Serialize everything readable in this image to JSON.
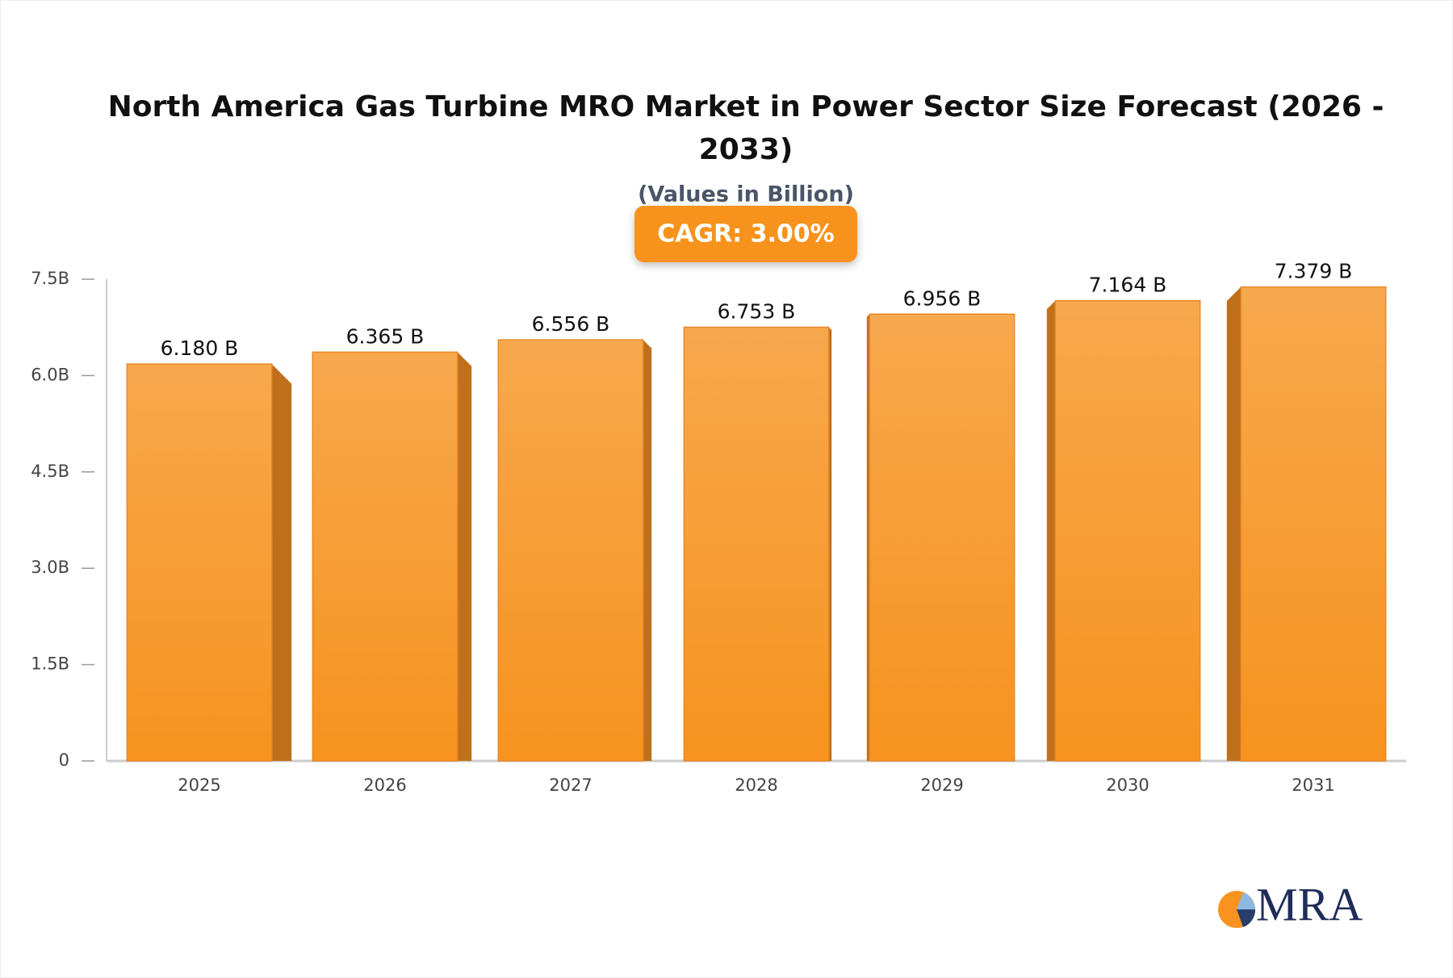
{
  "chart_data": {
    "type": "bar",
    "title": "North America Gas Turbine MRO Market in Power Sector Size Forecast (2026 - 2033)",
    "subtitle": "(Values in Billion)",
    "annotation": "CAGR: 3.00%",
    "categories": [
      "2025",
      "2026",
      "2027",
      "2028",
      "2029",
      "2030",
      "2031"
    ],
    "values": [
      6.18,
      6.365,
      6.556,
      6.753,
      6.956,
      7.164,
      7.379
    ],
    "value_labels": [
      "6.180 B",
      "6.365 B",
      "6.556 B",
      "6.753 B",
      "6.956 B",
      "7.164 B",
      "7.379 B"
    ],
    "color": "#f7a040",
    "ylim": [
      0,
      7.5
    ],
    "yticks": [
      0,
      {
        "value": 1.5,
        "label": "1.5B"
      },
      {
        "value": 3,
        "label": "3.0B"
      },
      {
        "value": 4.5,
        "label": "4.5B"
      },
      {
        "value": 6,
        "label": "6.0B"
      },
      {
        "value": 7.5,
        "label": "7.5B"
      }
    ],
    "grid": false
  },
  "branding": {
    "logo": "MRA"
  }
}
